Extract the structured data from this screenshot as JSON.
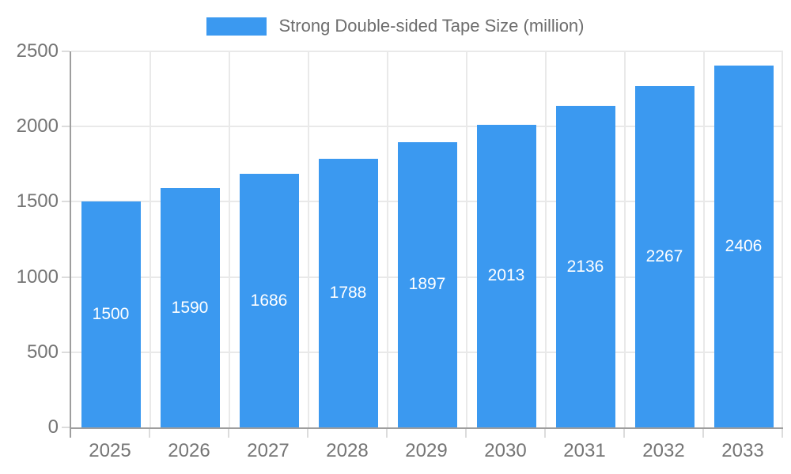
{
  "chart_data": {
    "type": "bar",
    "title": "Strong Double-sided Tape Size (million)",
    "categories": [
      "2025",
      "2026",
      "2027",
      "2028",
      "2029",
      "2030",
      "2031",
      "2032",
      "2033"
    ],
    "values": [
      1500,
      1590,
      1686,
      1788,
      1897,
      2013,
      2136,
      2267,
      2406
    ],
    "series": [
      {
        "name": "Strong Double-sided Tape Size (million)",
        "values": [
          1500,
          1590,
          1686,
          1788,
          1897,
          2013,
          2136,
          2267,
          2406
        ]
      }
    ],
    "xlabel": "",
    "ylabel": "",
    "ylim": [
      0,
      2500
    ],
    "yticks": [
      0,
      500,
      1000,
      1500,
      2000,
      2500
    ],
    "grid": true,
    "legend_position": "top",
    "bar_labels_inside": true,
    "colors": {
      "bar": "#3b99f0",
      "bar_label": "#ffffff",
      "axis_text": "#757575",
      "legend_text": "#6d6d6d",
      "grid_line": "#e9e9e9",
      "axis_line": "#9e9e9e"
    }
  },
  "legend": {
    "label": "Strong Double-sided Tape Size (million)",
    "swatch_color": "#3b99f0"
  }
}
